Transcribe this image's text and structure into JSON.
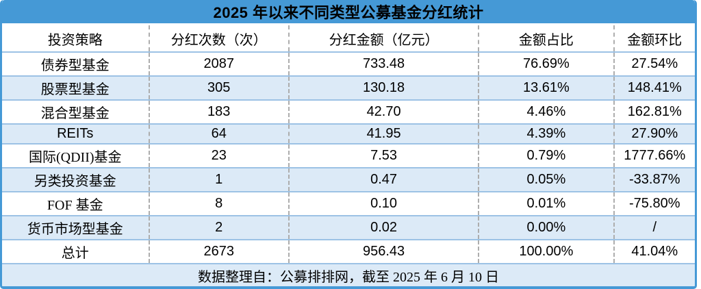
{
  "table": {
    "title": "2025 年以来不同类型公募基金分红统计",
    "columns": [
      "投资策略",
      "分红次数（次）",
      "分红金额（亿元）",
      "金额占比",
      "金额环比"
    ],
    "rows": [
      [
        "债券型基金",
        "2087",
        "733.48",
        "76.69%",
        "27.54%"
      ],
      [
        "股票型基金",
        "305",
        "130.18",
        "13.61%",
        "148.41%"
      ],
      [
        "混合型基金",
        "183",
        "42.70",
        "4.46%",
        "162.81%"
      ],
      [
        "REITs",
        "64",
        "41.95",
        "4.39%",
        "27.90%"
      ],
      [
        "国际(QDII)基金",
        "23",
        "7.53",
        "0.79%",
        "1777.66%"
      ],
      [
        "另类投资基金",
        "1",
        "0.47",
        "0.05%",
        "-33.87%"
      ],
      [
        "FOF 基金",
        "8",
        "0.10",
        "0.01%",
        "-75.80%"
      ],
      [
        "货币市场型基金",
        "2",
        "0.02",
        "0.00%",
        "/"
      ],
      [
        "总计",
        "2673",
        "956.43",
        "100.00%",
        "41.04%"
      ]
    ],
    "footer": "数据整理自：公募排排网，截至 2025 年 6 月 10 日"
  },
  "colors": {
    "title_bg": "#4599D6",
    "outer_border": "#4599D6",
    "row_alt_bg": "#DCEAF7",
    "row_separator": "#9CC2E5",
    "column_dash": "#ADADAD",
    "text": "#000000"
  }
}
